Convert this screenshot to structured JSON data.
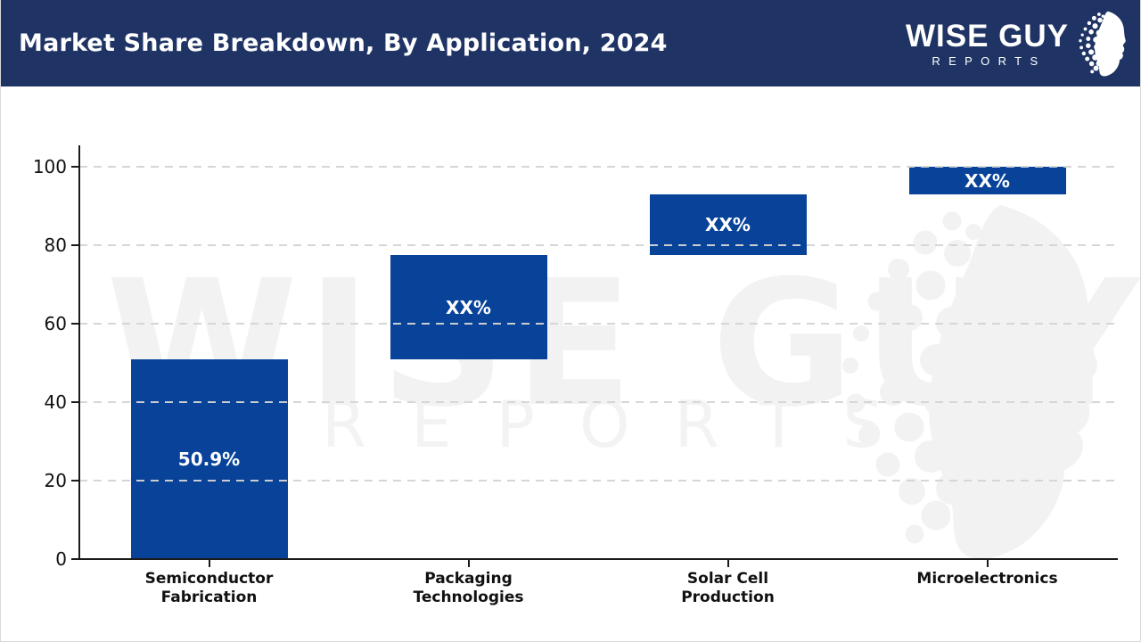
{
  "header": {
    "title": "Market Share Breakdown, By Application, 2024",
    "logo": {
      "name": "WISE GUY",
      "tagline": "REPORTS"
    }
  },
  "watermark": {
    "name": "WISE GUY",
    "tagline": "REPORTS"
  },
  "colors": {
    "header_bg": "#1f3464",
    "bar": "#084399",
    "grid": "#d4d4d4",
    "axis": "#1a1a1a",
    "bar_label_text": "#ffffff",
    "watermark": "#f2f2f2"
  },
  "chart_data": {
    "type": "bar",
    "variant": "waterfall",
    "title": "Market Share Breakdown, By Application, 2024",
    "xlabel": "",
    "ylabel": "",
    "ylim": [
      0,
      100
    ],
    "yticks": [
      0,
      20,
      40,
      60,
      80,
      100
    ],
    "grid": "horizontal dashed",
    "legend": "none",
    "categories": [
      "Semiconductor Fabrication",
      "Packaging Technologies",
      "Solar Cell Production",
      "Microelectronics"
    ],
    "segments": [
      {
        "category": "Semiconductor Fabrication",
        "category_lines": [
          "Semiconductor",
          "Fabrication"
        ],
        "start": 0,
        "end": 50.9,
        "value": 50.9,
        "value_label": "50.9%"
      },
      {
        "category": "Packaging Technologies",
        "category_lines": [
          "Packaging",
          "Technologies"
        ],
        "start": 50.9,
        "end": 77.5,
        "value": 26.6,
        "value_label": "XX%"
      },
      {
        "category": "Solar Cell Production",
        "category_lines": [
          "Solar Cell",
          "Production"
        ],
        "start": 77.5,
        "end": 92.9,
        "value": 15.4,
        "value_label": "XX%"
      },
      {
        "category": "Microelectronics",
        "category_lines": [
          "Microelectronics"
        ],
        "start": 92.9,
        "end": 100,
        "value": 7.1,
        "value_label": "XX%"
      }
    ]
  }
}
